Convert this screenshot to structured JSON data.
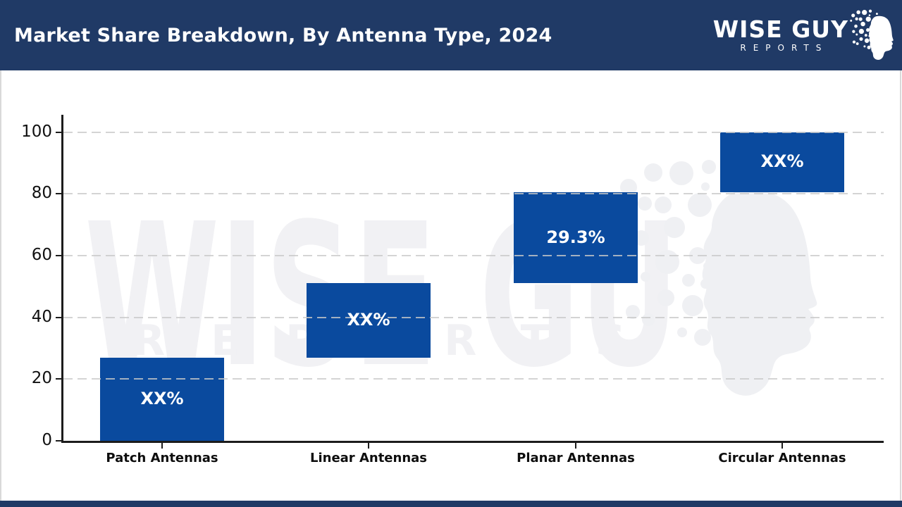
{
  "header": {
    "title": "Market Share Breakdown, By Antenna Type, 2024",
    "logo": {
      "line1": "WISE GUY",
      "line2": "REPORTS"
    }
  },
  "watermark": {
    "line1": "WISE GU",
    "line2": "REPORTS"
  },
  "chart_data": {
    "type": "bar",
    "subtype": "floating-waterfall",
    "title": "Market Share Breakdown, By Antenna Type, 2024",
    "categories": [
      "Patch Antennas",
      "Linear Antennas",
      "Planar Antennas",
      "Circular Antennas"
    ],
    "series": [
      {
        "name": "Market share (%)",
        "segments": [
          {
            "category": "Patch Antennas",
            "start": 0,
            "end": 26.8,
            "label": "XX%"
          },
          {
            "category": "Linear Antennas",
            "start": 26.8,
            "end": 51.1,
            "label": "XX%"
          },
          {
            "category": "Planar Antennas",
            "start": 51.1,
            "end": 80.4,
            "label": "29.3%"
          },
          {
            "category": "Circular Antennas",
            "start": 80.4,
            "end": 100,
            "label": "XX%"
          }
        ]
      }
    ],
    "xlabel": "",
    "ylabel": "",
    "ylim": [
      0,
      100
    ],
    "yticks": [
      0,
      20,
      40,
      60,
      80,
      100
    ],
    "grid": {
      "horizontal": true,
      "style": "dashed",
      "drawn_over_bars": true
    },
    "legend": "none",
    "colors": {
      "bar": "#0a4a9e",
      "bar_label": "#ffffff",
      "axis": "#1c1c1c",
      "gridline": "#c9c9c9",
      "header_bg": "#203a66",
      "footer_bg": "#203a66",
      "watermark": "#f1f1f4"
    }
  }
}
